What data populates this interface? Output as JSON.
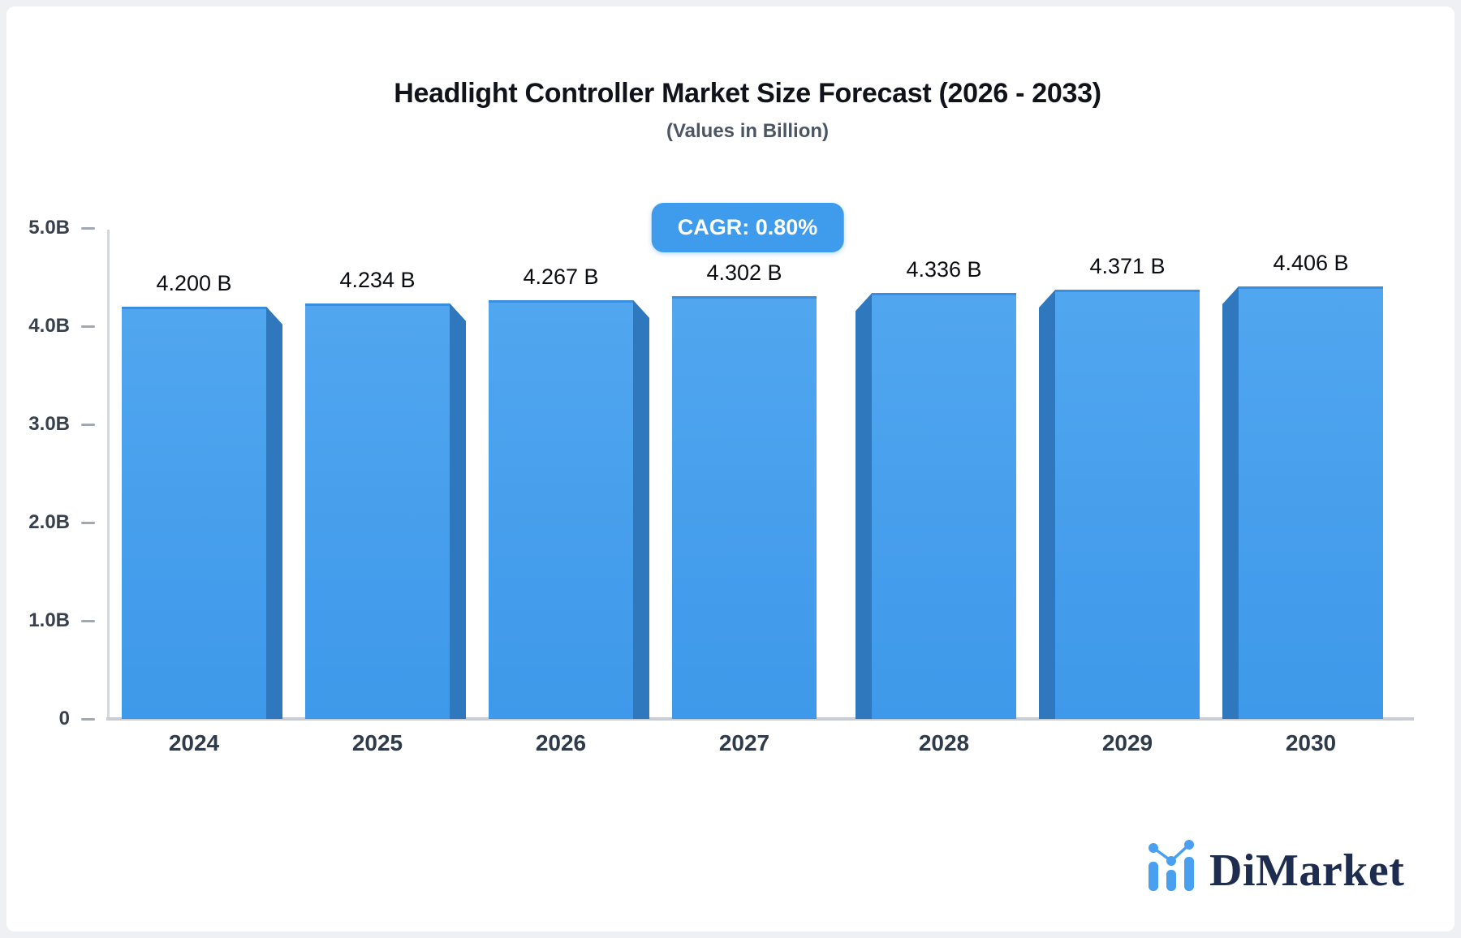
{
  "header": {
    "title": "Headlight Controller Market Size Forecast (2026 - 2033)",
    "subtitle": "(Values in Billion)"
  },
  "badge": {
    "label": "CAGR: 0.80%",
    "background": "#3f9ced",
    "text_color": "#ffffff"
  },
  "chart_data": {
    "type": "bar",
    "title": "Headlight Controller Market Size Forecast (2026 - 2033)",
    "subtitle": "(Values in Billion)",
    "cagr": "0.80%",
    "categories": [
      "2024",
      "2025",
      "2026",
      "2027",
      "2028",
      "2029",
      "2030"
    ],
    "values": [
      4.2,
      4.234,
      4.267,
      4.302,
      4.336,
      4.371,
      4.406
    ],
    "value_labels": [
      "4.200 B",
      "4.234 B",
      "4.267 B",
      "4.302 B",
      "4.336 B",
      "4.371 B",
      "4.406 B"
    ],
    "unit": "Billion",
    "ylim": [
      0,
      5
    ],
    "y_ticks": [
      {
        "value": 5,
        "label": "5.0B"
      },
      {
        "value": 4,
        "label": "4.0B"
      },
      {
        "value": 3,
        "label": "3.0B"
      },
      {
        "value": 2,
        "label": "2.0B"
      },
      {
        "value": 1,
        "label": "1.0B"
      },
      {
        "value": 0,
        "label": "0"
      }
    ],
    "grid": false,
    "legend": null,
    "bar_color": "#45a0ee",
    "bar_side_color": "#2f78be",
    "axis_color": "#c9cdd3"
  },
  "watermark": {
    "brand": "DiMarket",
    "icon": "bar-chart-icon",
    "text_color": "#1d2c4f",
    "accent": "#4aa0f0"
  }
}
